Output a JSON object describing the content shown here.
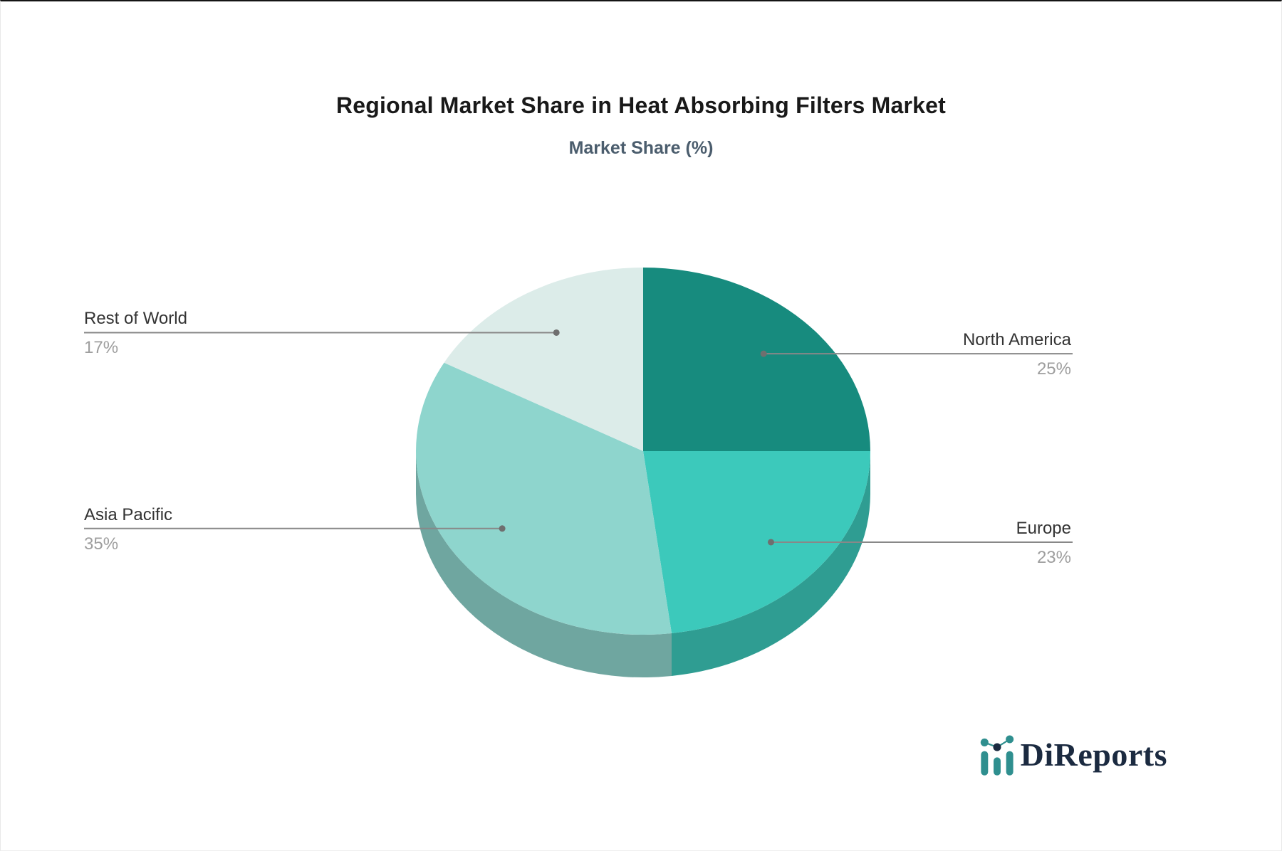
{
  "chart_data": {
    "type": "pie",
    "title": "Regional Market Share in Heat Absorbing Filters Market",
    "subtitle": "Market Share (%)",
    "unit": "%",
    "direction": "clockwise",
    "start_angle_deg": 0,
    "three_d": true,
    "legend_position": "none",
    "slices": [
      {
        "name": "North America",
        "value": 25,
        "pct_label": "25%",
        "color": "#178b7e",
        "label_side": "right"
      },
      {
        "name": "Europe",
        "value": 23,
        "pct_label": "23%",
        "color": "#3cc9bb",
        "label_side": "right"
      },
      {
        "name": "Asia Pacific",
        "value": 35,
        "pct_label": "35%",
        "color": "#8ed5cd",
        "label_side": "left"
      },
      {
        "name": "Rest of World",
        "value": 17,
        "pct_label": "17%",
        "color": "#dcece9",
        "label_side": "left"
      }
    ],
    "leader_line_color": "#888888",
    "leader_dot_color": "#6f6f6f",
    "name_label_color": "#333333",
    "pct_label_color": "#9e9e9e",
    "title_color": "#191919",
    "subtitle_color": "#4b5d6d"
  },
  "logo": {
    "text": "DiReports",
    "icon": "mini-bar-chart-icon",
    "text_color": "#1b2a40",
    "accent_color": "#2f8f8f"
  }
}
